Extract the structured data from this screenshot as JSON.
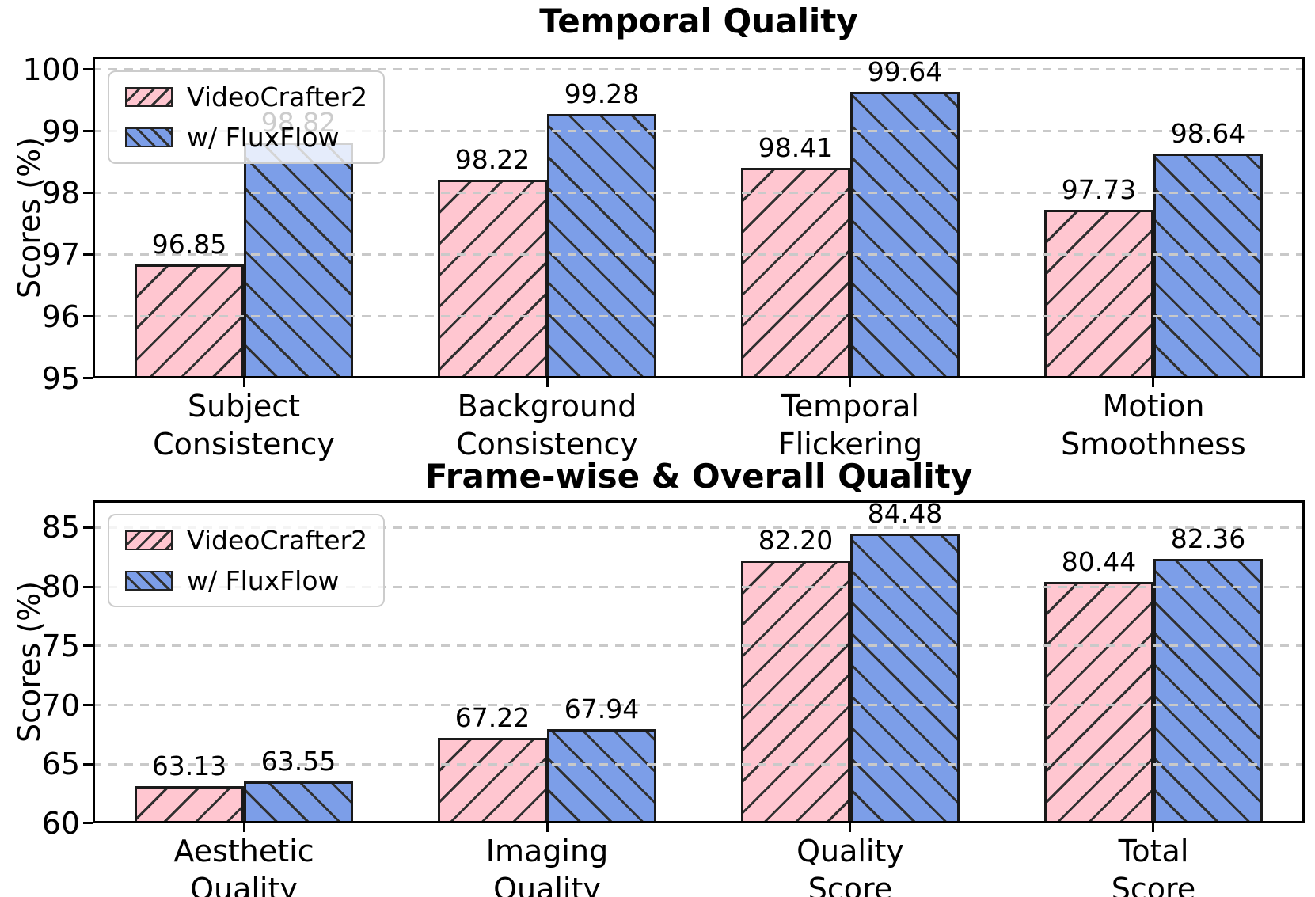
{
  "style": {
    "background": "#ffffff",
    "videocrafter2_color": "#FFC6D0",
    "fluxflow_color": "#7C9EE8",
    "hatch_line_color": "#303030",
    "bar_edge_color": "#1a1a1a",
    "grid_color": "#c9c9c9",
    "spine_color": "#000000",
    "text_color": "#000000",
    "legend_background": "rgba(255,255,255,0.8)",
    "legend_border_color": "#cccccc"
  },
  "legend": {
    "items": [
      {
        "label": "VideoCrafter2",
        "hatch": "/",
        "color": "#FFC6D0"
      },
      {
        "label": "w/ FluxFlow",
        "hatch": "\\",
        "color": "#7C9EE8"
      }
    ]
  },
  "chart_data": [
    {
      "type": "bar",
      "title": "Temporal Quality",
      "ylabel": "Scores (%)",
      "categories": [
        "Subject\nConsistency",
        "Background\nConsistency",
        "Temporal\nFlickering",
        "Motion\nSmoothness"
      ],
      "series": [
        {
          "name": "VideoCrafter2",
          "hatch": "/",
          "color": "#FFC6D0",
          "values": [
            96.85,
            98.22,
            98.41,
            97.73
          ]
        },
        {
          "name": "w/ FluxFlow",
          "hatch": "\\",
          "color": "#7C9EE8",
          "values": [
            98.82,
            99.28,
            99.64,
            98.64
          ]
        }
      ],
      "ylim": [
        95,
        100.2
      ],
      "yticks": [
        95,
        96,
        97,
        98,
        99,
        100
      ],
      "grid": true,
      "grid_style": "dashed",
      "legend_position": "upper left",
      "bar_value_labels": true
    },
    {
      "type": "bar",
      "title": "Frame-wise & Overall Quality",
      "ylabel": "Scores (%)",
      "categories": [
        "Aesthetic\nQuality",
        "Imaging\nQuality",
        "Quality\nScore",
        "Total\nScore"
      ],
      "series": [
        {
          "name": "VideoCrafter2",
          "hatch": "/",
          "color": "#FFC6D0",
          "values": [
            63.13,
            67.22,
            82.2,
            80.44
          ]
        },
        {
          "name": "w/ FluxFlow",
          "hatch": "\\",
          "color": "#7C9EE8",
          "values": [
            63.55,
            67.94,
            84.48,
            82.36
          ]
        }
      ],
      "ylim": [
        60,
        87.3
      ],
      "yticks": [
        60,
        65,
        70,
        75,
        80,
        85
      ],
      "grid": true,
      "grid_style": "dashed",
      "legend_position": "upper left",
      "bar_value_labels": true
    }
  ]
}
